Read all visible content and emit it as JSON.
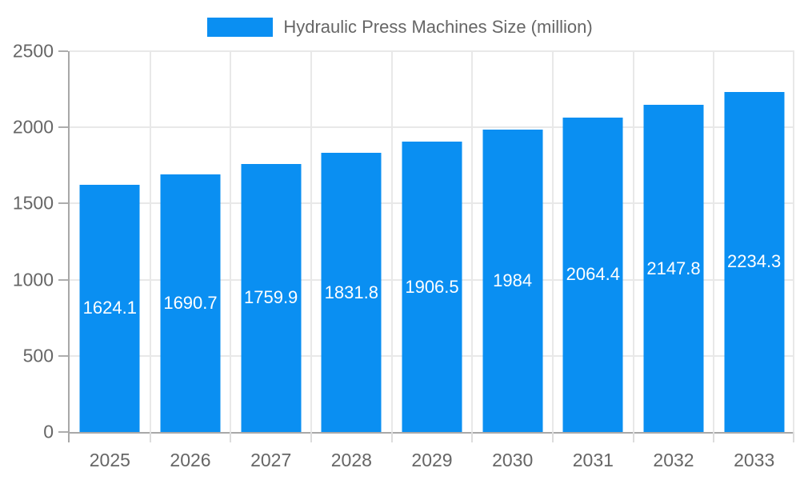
{
  "legend": {
    "label": "Hydraulic Press Machines Size (million)"
  },
  "chart_data": {
    "type": "bar",
    "title": "",
    "categories": [
      "2025",
      "2026",
      "2027",
      "2028",
      "2029",
      "2030",
      "2031",
      "2032",
      "2033"
    ],
    "series": [
      {
        "name": "Hydraulic Press Machines Size (million)",
        "values": [
          1624.1,
          1690.7,
          1759.9,
          1831.8,
          1906.5,
          1984,
          2064.4,
          2147.8,
          2234.3
        ]
      }
    ],
    "ylim": [
      0,
      2500
    ],
    "yticks": [
      0,
      500,
      1000,
      1500,
      2000,
      2500
    ],
    "xlabel": "",
    "ylabel": "",
    "grid": "on",
    "legend_position": "top-center",
    "bar_label_position": "inside-middle"
  },
  "colors": {
    "bar": "#0a8ff2",
    "bar_label_text": "#ffffff",
    "axis_text": "#666666",
    "grid": "#e8e8e8",
    "axis_line": "#a8a8a8",
    "ytick": "#adadad",
    "xtick": "#dcdcdc"
  }
}
